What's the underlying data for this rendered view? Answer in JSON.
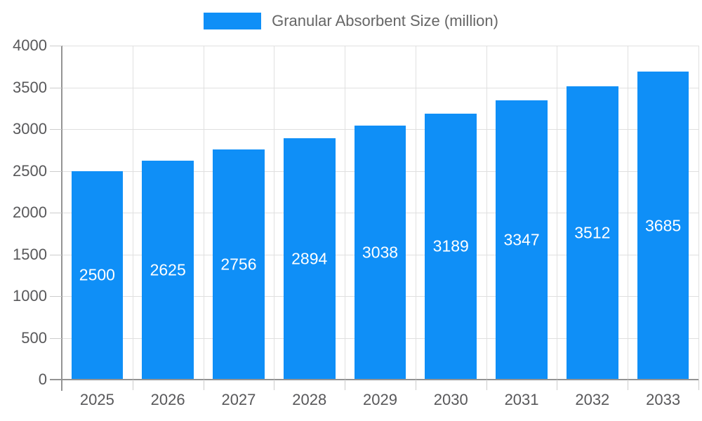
{
  "chart_data": {
    "type": "bar",
    "title": "",
    "categories": [
      "2025",
      "2026",
      "2027",
      "2028",
      "2029",
      "2030",
      "2031",
      "2032",
      "2033"
    ],
    "series": [
      {
        "name": "Granular Absorbent Size (million)",
        "values": [
          2500,
          2625,
          2756,
          2894,
          3038,
          3189,
          3347,
          3512,
          3685
        ],
        "color": "#0f8ff7"
      }
    ],
    "xlabel": "",
    "ylabel": "",
    "ylim": [
      0,
      4000
    ],
    "yticks": [
      0,
      500,
      1000,
      1500,
      2000,
      2500,
      3000,
      3500,
      4000
    ],
    "grid": true,
    "legend_position": "top-center",
    "bar_labels": {
      "visible": true,
      "placement": "center",
      "color": "#ffffff"
    }
  },
  "colors": {
    "bar": "#0f8ff7",
    "bar_label": "#ffffff",
    "gridline": "#e0e0e0",
    "tick": "#cccccc",
    "axis_line": "#949494",
    "axis_text": "#58585a",
    "legend_text": "#666666",
    "background": "#ffffff"
  }
}
